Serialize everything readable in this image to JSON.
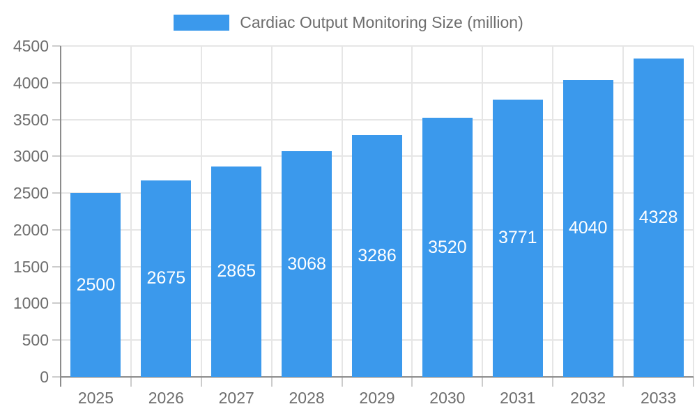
{
  "legend": {
    "label": "Cardiac Output Monitoring Size (million)"
  },
  "chart_data": {
    "type": "bar",
    "title": "",
    "xlabel": "",
    "ylabel": "",
    "categories": [
      "2025",
      "2026",
      "2027",
      "2028",
      "2029",
      "2030",
      "2031",
      "2032",
      "2033"
    ],
    "values": [
      2500,
      2675,
      2865,
      3068,
      3286,
      3520,
      3771,
      4040,
      4328
    ],
    "series_name": "Cardiac Output Monitoring Size (million)",
    "ylim": [
      0,
      4500
    ],
    "yticks": [
      0,
      500,
      1000,
      1500,
      2000,
      2500,
      3000,
      3500,
      4000,
      4500
    ],
    "grid": true,
    "legend_position": "top",
    "colors": {
      "bar": "#3B99EC",
      "value_label": "#FFFFFF",
      "axis_text": "#6E6E6E",
      "axis_line": "#8C8C8C",
      "gridline": "#E6E6E6",
      "tick": "#CCCCCC",
      "background": "#FFFFFF"
    }
  }
}
